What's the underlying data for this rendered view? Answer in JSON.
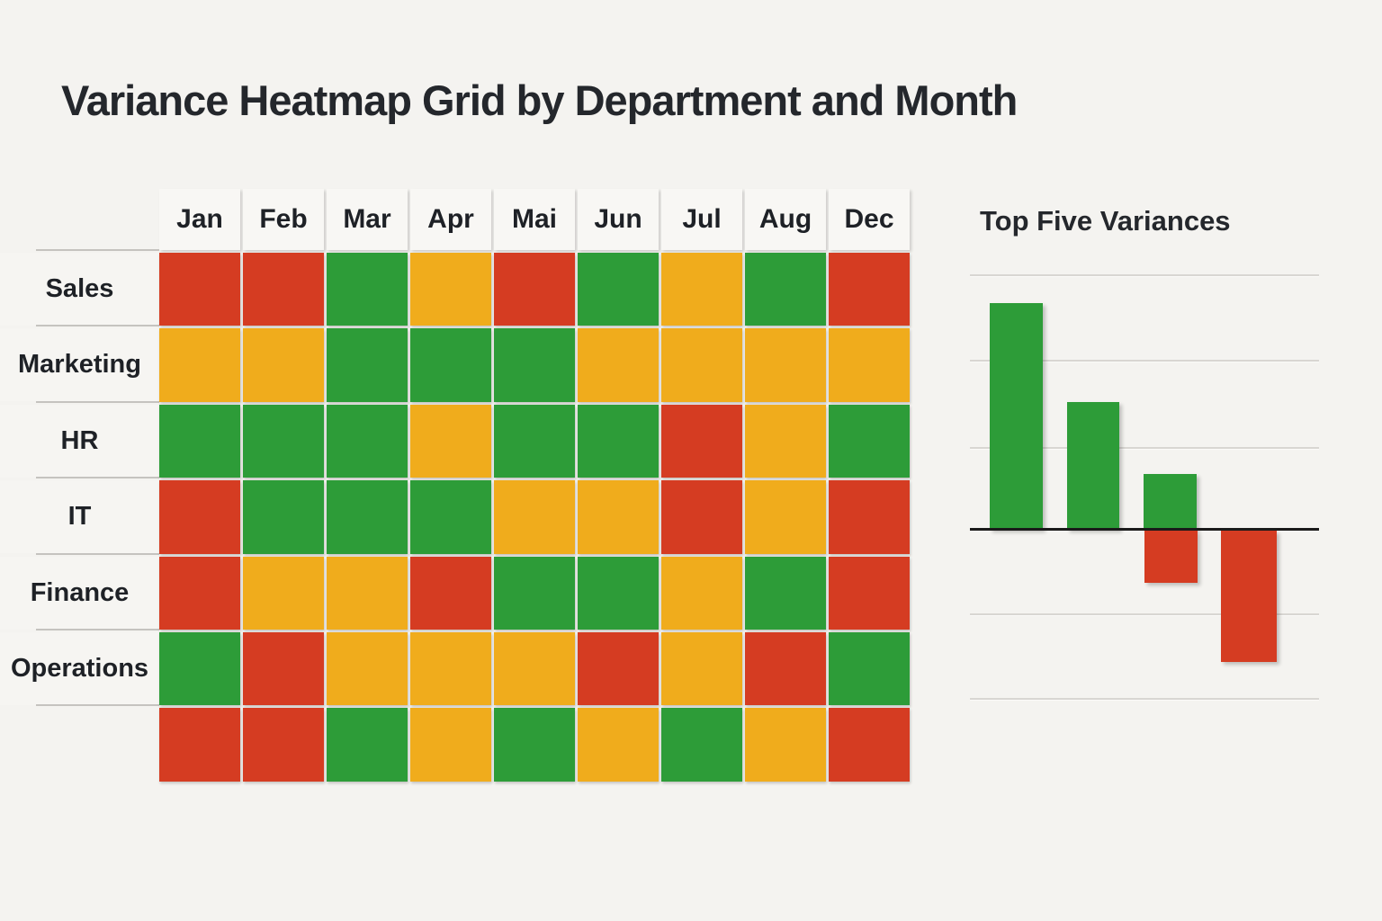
{
  "page": {
    "background": "#f4f3f0"
  },
  "palette": {
    "green": "#2d9c38",
    "yellow": "#f0ac1c",
    "red": "#d53c22"
  },
  "chart_data": [
    {
      "type": "heatmap",
      "title": "Variance Heatmap Grid by Department and Month",
      "x_labels": [
        "Jan",
        "Feb",
        "Mar",
        "Apr",
        "Mai",
        "Jun",
        "Jul",
        "Aug",
        "Dec"
      ],
      "y_labels": [
        "Sales",
        "Marketing",
        "HR",
        "IT",
        "Finance",
        "Operations",
        ""
      ],
      "cells": [
        [
          "red",
          "red",
          "green",
          "yellow",
          "red",
          "green",
          "yellow",
          "green",
          "red"
        ],
        [
          "yellow",
          "yellow",
          "green",
          "green",
          "green",
          "yellow",
          "yellow",
          "yellow",
          "yellow"
        ],
        [
          "green",
          "green",
          "green",
          "yellow",
          "green",
          "green",
          "red",
          "yellow",
          "green"
        ],
        [
          "red",
          "green",
          "green",
          "green",
          "yellow",
          "yellow",
          "red",
          "yellow",
          "red"
        ],
        [
          "red",
          "yellow",
          "yellow",
          "red",
          "green",
          "green",
          "yellow",
          "green",
          "red"
        ],
        [
          "green",
          "red",
          "yellow",
          "yellow",
          "yellow",
          "red",
          "yellow",
          "red",
          "green"
        ],
        [
          "red",
          "red",
          "green",
          "yellow",
          "green",
          "yellow",
          "green",
          "yellow",
          "red"
        ]
      ],
      "palette": {
        "green": "#2d9c38",
        "yellow": "#f0ac1c",
        "red": "#d53c22"
      },
      "legend_position": "none",
      "grid": false
    },
    {
      "type": "bar",
      "title": "Top Five Variances",
      "categories": [
        "",
        "",
        "",
        "",
        ""
      ],
      "values": [
        2.6,
        1.47,
        0.64,
        -0.6,
        -1.51
      ],
      "bar_colors": [
        "green",
        "green",
        "green",
        "red",
        "red"
      ],
      "x_slots": [
        0,
        1,
        2,
        2,
        3
      ],
      "ylim": [
        -2.9,
        2.95
      ],
      "gridline_step": 1,
      "axis_line_y": 0,
      "grid": true,
      "legend_position": "none"
    }
  ]
}
